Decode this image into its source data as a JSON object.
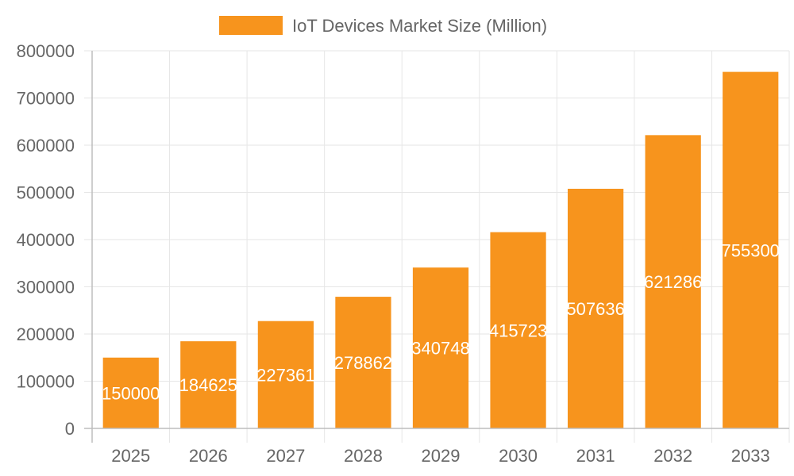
{
  "chart_data": {
    "type": "bar",
    "categories": [
      "2025",
      "2026",
      "2027",
      "2028",
      "2029",
      "2030",
      "2031",
      "2032",
      "2033"
    ],
    "series": [
      {
        "name": "IoT Devices Market Size (Million)",
        "values": [
          150000,
          184625,
          227361,
          278862,
          340748,
          415723,
          507636,
          621286,
          755300
        ],
        "color": "#f7941d"
      }
    ],
    "data_labels": [
      "150000",
      "184625",
      "227361",
      "278862",
      "340748",
      "415723",
      "507636",
      "621286",
      "755300"
    ],
    "ylim": [
      0,
      800000
    ],
    "yticks": [
      "0",
      "100000",
      "200000",
      "300000",
      "400000",
      "500000",
      "600000",
      "700000",
      "800000"
    ],
    "grid": true,
    "legend_position": "top",
    "colors": {
      "grid": "#e6e6e6",
      "axis": "#bdbdbd",
      "tick_text": "#666666",
      "bar_label": "#ffffff"
    }
  }
}
